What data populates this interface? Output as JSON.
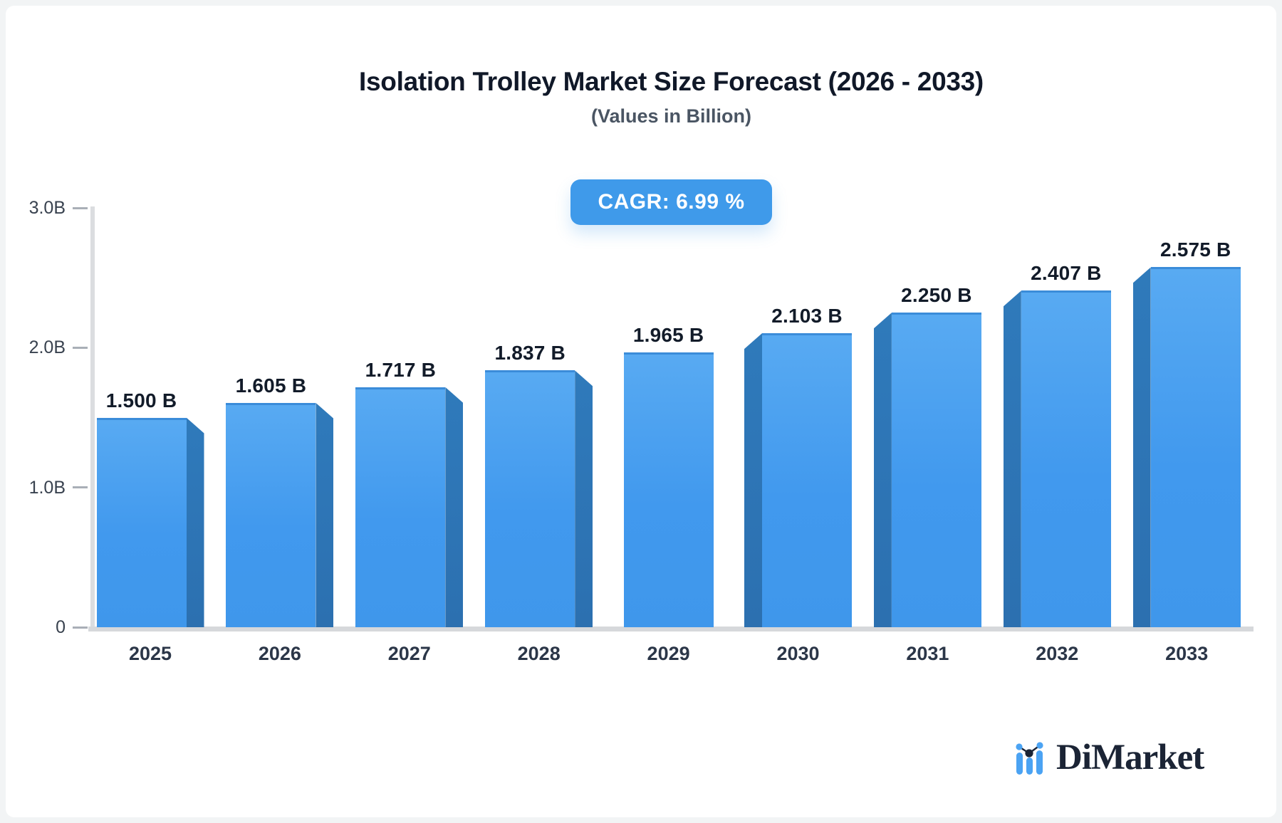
{
  "header": {
    "title": "Isolation Trolley Market Size Forecast (2026 - 2033)",
    "subtitle": "(Values in Billion)"
  },
  "badge": {
    "label": "CAGR: 6.99 %",
    "background": "#3F9AEA",
    "text_color": "#FFFFFF"
  },
  "chart_data": {
    "type": "bar",
    "title": "Isolation Trolley Market Size Forecast (2026 - 2033)",
    "subtitle": "(Values in Billion)",
    "categories": [
      "2025",
      "2026",
      "2027",
      "2028",
      "2029",
      "2030",
      "2031",
      "2032",
      "2033"
    ],
    "values": [
      1.5,
      1.605,
      1.717,
      1.837,
      1.965,
      2.103,
      2.25,
      2.407,
      2.575
    ],
    "value_labels": [
      "1.500 B",
      "1.605 B",
      "1.717 B",
      "1.837 B",
      "1.965 B",
      "2.103 B",
      "2.250 B",
      "2.407 B",
      "2.575 B"
    ],
    "xlabel": "",
    "ylabel": "",
    "ylim": [
      0,
      3.0
    ],
    "yticks": [
      {
        "value": 0.0,
        "label": "0"
      },
      {
        "value": 1.0,
        "label": "1.0B"
      },
      {
        "value": 2.0,
        "label": "2.0B"
      },
      {
        "value": 3.0,
        "label": "3.0B"
      }
    ],
    "grid": false,
    "legend": false,
    "bar_style": "3d-blue",
    "colors": {
      "bar_face": "#4AA0EE",
      "bar_side": "#2D74B6",
      "axis_line": "#DBDDE0",
      "tick_dash": "#A9AFB7",
      "value_label": "#121B29",
      "axis_label": "#39424F",
      "category_label": "#2B3648"
    }
  },
  "logo": {
    "text": "DiMarket",
    "icon": "mini-bar-chart-icon",
    "text_color": "#1B2435",
    "accent_color": "#4BA3F3"
  }
}
